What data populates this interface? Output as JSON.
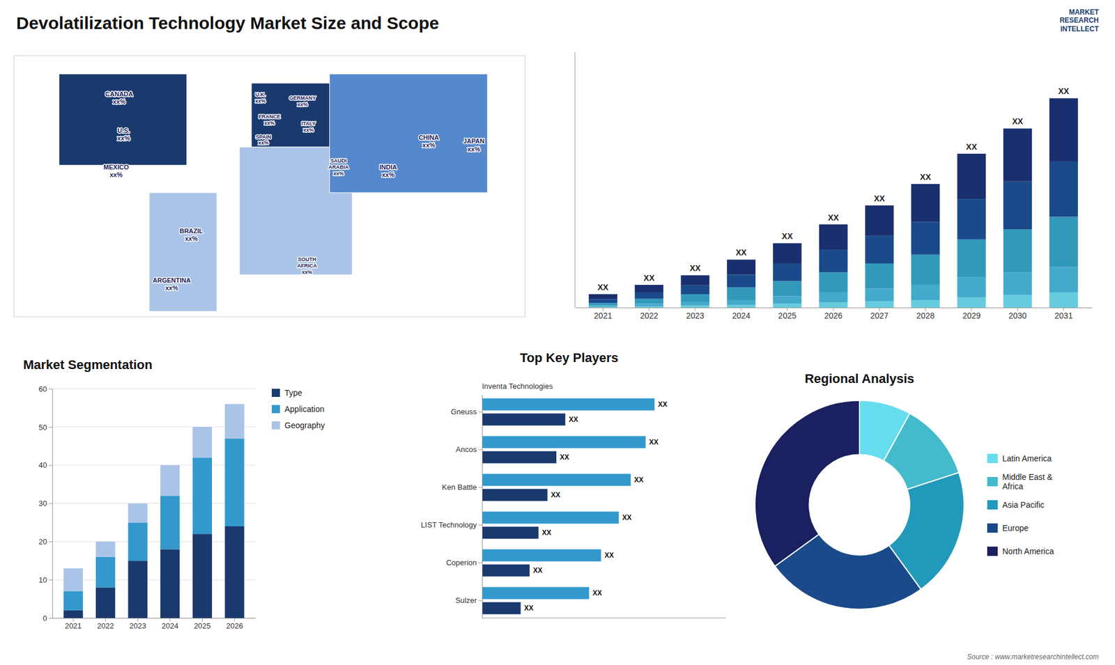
{
  "title": "Devolatilization Technology Market Size and Scope",
  "annotations": [
    "MARKET\nRESEARCH\nINTELLECT",
    "Source : www.marketresearchintellect.com"
  ],
  "chart_data": [
    {
      "type": "map",
      "annotations": [
        "CANADA\nxx%",
        "U.S.\nxx%",
        "MEXICO\nxx%",
        "BRAZIL\nxx%",
        "ARGENTINA\nxx%",
        "U.K.\nxx%",
        "FRANCE\nxx%",
        "SPAIN\nxx%",
        "GERMANY\nxx%",
        "ITALY\nxx%",
        "SAUDI\nARABIA\nxx%",
        "SOUTH\nAFRICA\nxx%",
        "CHINA\nxx%",
        "INDIA\nxx%",
        "JAPAN\nxx%"
      ],
      "colors": [
        "#1a3a6e",
        "#aac4e8",
        "#1a3a6e",
        "#aac4e8",
        "#5588cc"
      ],
      "xlim": [
        -170,
        170
      ],
      "ylim": [
        -58,
        85
      ],
      "tick_labels": false
    },
    {
      "type": "bar",
      "stacked": true,
      "categories": [
        "2021",
        "2022",
        "2023",
        "2024",
        "2025",
        "2026",
        "2027",
        "2028",
        "2029",
        "2030",
        "2031"
      ],
      "series": [
        {
          "color": "#66ccdd",
          "values": [
            0.3,
            0.5,
            0.8,
            1.0,
            1.5,
            2.0,
            2.5,
            3.0,
            4.0,
            5.0,
            6.0
          ]
        },
        {
          "color": "#44aacc",
          "values": [
            0.5,
            1.0,
            1.5,
            2.0,
            3.0,
            4.0,
            5.0,
            6.0,
            8.0,
            9.0,
            10.0
          ]
        },
        {
          "color": "#3399bb",
          "values": [
            1.0,
            2.0,
            3.0,
            5.0,
            6.0,
            8.0,
            10.0,
            12.0,
            15.0,
            17.0,
            20.0
          ]
        },
        {
          "color": "#1a4a8a",
          "values": [
            1.5,
            2.5,
            3.5,
            5.0,
            7.0,
            9.0,
            11.0,
            13.0,
            16.0,
            19.0,
            22.0
          ]
        },
        {
          "color": "#1a2f6e",
          "values": [
            2.0,
            3.0,
            4.0,
            6.0,
            8.0,
            10.0,
            12.0,
            15.0,
            18.0,
            21.0,
            25.0
          ]
        }
      ],
      "annotations": [
        "XX",
        "XX",
        "XX",
        "XX",
        "XX",
        "XX",
        "XX",
        "XX",
        "XX",
        "XX",
        "XX"
      ],
      "ylim": [
        0,
        101.26
      ],
      "tick_labels": "x"
    },
    {
      "type": "bar",
      "stacked": true,
      "title": "Market Segmentation",
      "categories": [
        "2021",
        "2022",
        "2023",
        "2024",
        "2025",
        "2026"
      ],
      "series": [
        {
          "name": "Type",
          "color": "#1a3a6e",
          "values": [
            2,
            8,
            15,
            18,
            22,
            24
          ]
        },
        {
          "name": "Application",
          "color": "#3399cc",
          "values": [
            5,
            8,
            10,
            14,
            20,
            23
          ]
        },
        {
          "name": "Geography",
          "color": "#aac4e8",
          "values": [
            6,
            4,
            5,
            8,
            8,
            9
          ]
        }
      ],
      "ylim": [
        0,
        60
      ],
      "yticks": [
        0,
        10,
        20,
        30,
        40,
        50,
        60
      ],
      "grid": true,
      "legend": "right"
    },
    {
      "type": "bar",
      "orientation": "horizontal",
      "title": "Top Key Players",
      "subtitle": "Inventa Technologies",
      "categories": [
        "Gneuss",
        "Ancos",
        "Ken Battle",
        "LIST Technology",
        "Coperion",
        "Sulzer"
      ],
      "series": [
        {
          "color": "#3399cc",
          "values": [
            0.58,
            0.55,
            0.5,
            0.46,
            0.4,
            0.36
          ],
          "value_labels": [
            "XX",
            "XX",
            "XX",
            "XX",
            "XX",
            "XX"
          ]
        },
        {
          "color": "#1a3a6e",
          "values": [
            0.28,
            0.25,
            0.22,
            0.19,
            0.16,
            0.13
          ],
          "value_labels": [
            "XX",
            "XX",
            "XX",
            "XX",
            "XX",
            "XX"
          ]
        }
      ],
      "xlim": [
        0,
        0.82
      ],
      "tick_labels": "y",
      "data_labels": true
    },
    {
      "type": "pie",
      "title": "Regional Analysis",
      "categories": [
        "Latin America",
        "Middle East &\nAfrica",
        "Asia Pacific",
        "Europe",
        "North America"
      ],
      "values": [
        8,
        12,
        20,
        25,
        35
      ],
      "colors": [
        "#66ddee",
        "#44bbcc",
        "#2299bb",
        "#1a4a8a",
        "#1a2060"
      ],
      "legend": "right"
    }
  ]
}
